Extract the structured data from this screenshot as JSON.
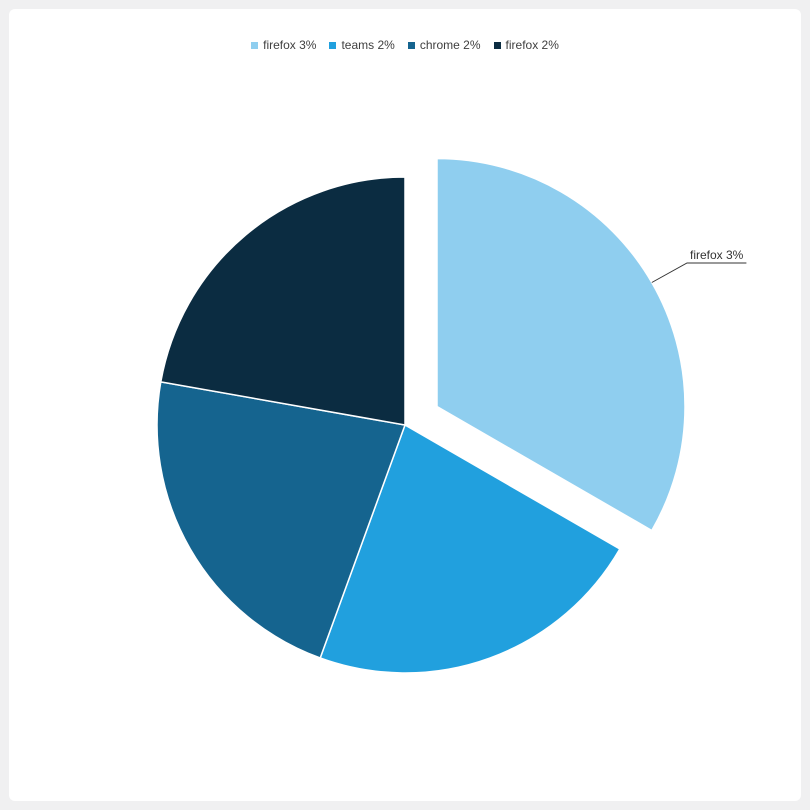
{
  "page": {
    "background_color": "#f0f0f1",
    "card_color": "#ffffff"
  },
  "chart_data": {
    "type": "pie",
    "title": "",
    "legend_position": "top",
    "start_angle_deg": 0,
    "clockwise": true,
    "slices": [
      {
        "label": "firefox",
        "value": 3,
        "percent_label": "3%",
        "legend_label": "firefox 3%",
        "color": "#8FCEEF",
        "exploded": true
      },
      {
        "label": "teams",
        "value": 2,
        "percent_label": "2%",
        "legend_label": "teams 2%",
        "color": "#21A0DE",
        "exploded": false
      },
      {
        "label": "chrome",
        "value": 2,
        "percent_label": "2%",
        "legend_label": "chrome 2%",
        "color": "#15648F",
        "exploded": false
      },
      {
        "label": "firefox",
        "value": 2,
        "percent_label": "2%",
        "legend_label": "firefox 2%",
        "color": "#0B2C41",
        "exploded": false
      }
    ],
    "callout": {
      "text": "firefox 3%",
      "slice_index": 0
    },
    "legend_text_color": "#404040",
    "callout_text_color": "#333333",
    "leader_line_color": "#333333",
    "slice_border_color": "#ffffff"
  }
}
